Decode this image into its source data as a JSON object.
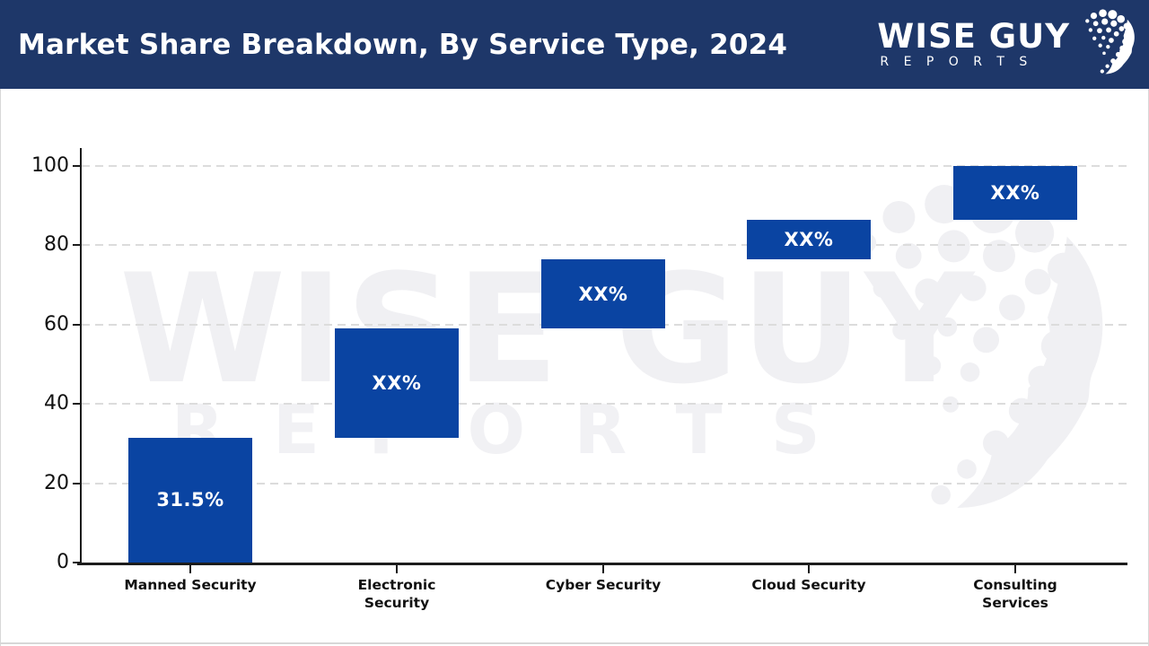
{
  "header": {
    "title": "Market Share Breakdown, By Service Type, 2024",
    "logo": {
      "line1": "WISE GUY",
      "line2": "R E P O R T S"
    }
  },
  "watermark": {
    "line1": "WISE GUY",
    "line2": "R E P O R T S"
  },
  "colors": {
    "header_bg": "#1e3769",
    "bar": "#0a44a2",
    "bar_label": "#ffffff",
    "gridline": "#dcdcdc",
    "axis": "#1c1c1c",
    "watermark": "#f0f0f3"
  },
  "chart_data": {
    "type": "bar",
    "variant": "waterfall",
    "title": "Market Share Breakdown, By Service Type, 2024",
    "xlabel": "",
    "ylabel": "",
    "ylim": [
      0,
      105
    ],
    "yticks": [
      0,
      20,
      40,
      60,
      80,
      100
    ],
    "grid": "horizontal dashed",
    "legend": "none",
    "categories": [
      "Manned Security",
      "Electronic\nSecurity",
      "Cyber Security",
      "Cloud Security",
      "Consulting\nServices"
    ],
    "segments": [
      {
        "category": "Manned Security",
        "start": 0,
        "end": 31.5,
        "label": "31.5%"
      },
      {
        "category": "Electronic Security",
        "start": 31.5,
        "end": 59,
        "label": "XX%"
      },
      {
        "category": "Cyber Security",
        "start": 59,
        "end": 76.5,
        "label": "XX%"
      },
      {
        "category": "Cloud Security",
        "start": 76.5,
        "end": 86.5,
        "label": "XX%"
      },
      {
        "category": "Consulting Services",
        "start": 86.5,
        "end": 100,
        "label": "XX%"
      }
    ]
  }
}
